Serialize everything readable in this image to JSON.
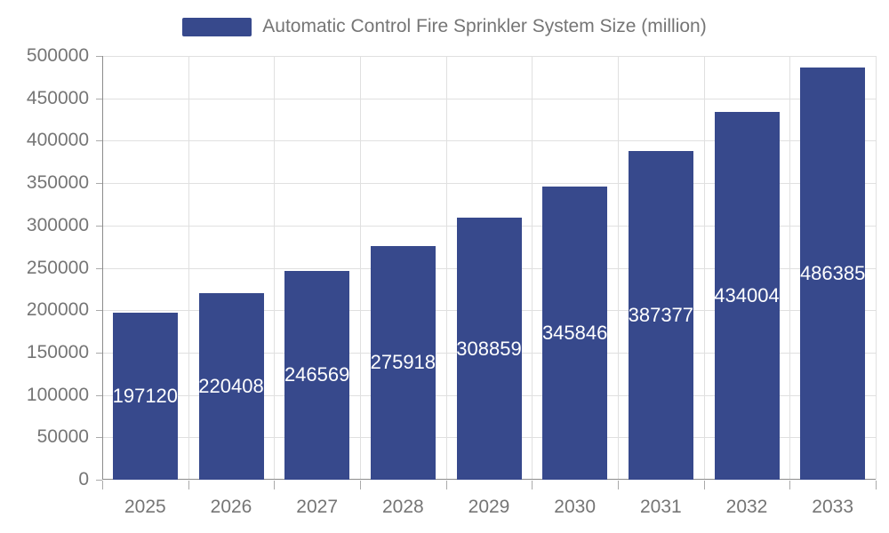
{
  "legend": {
    "label": "Automatic Control Fire Sprinkler System Size (million)"
  },
  "chart_data": {
    "type": "bar",
    "title": "Automatic Control Fire Sprinkler System Size (million)",
    "series_name": "Automatic Control Fire Sprinkler System Size (million)",
    "categories": [
      "2025",
      "2026",
      "2027",
      "2028",
      "2029",
      "2030",
      "2031",
      "2032",
      "2033"
    ],
    "values": [
      197120,
      220408,
      246569,
      275918,
      308859,
      345846,
      387377,
      434004,
      486385
    ],
    "xlabel": "",
    "ylabel": "",
    "ylim": [
      0,
      500000
    ],
    "ytick_step": 50000,
    "ytick_labels": [
      "0",
      "50000",
      "100000",
      "150000",
      "200000",
      "250000",
      "300000",
      "350000",
      "400000",
      "450000",
      "500000"
    ],
    "grid": true,
    "legend_position": "top",
    "bar_color": "#37498C",
    "value_label_color": "#ffffff",
    "axis_text_color": "#757575",
    "gridline_color": "#e0e0e0",
    "axis_line_color": "#8c8c8c"
  }
}
